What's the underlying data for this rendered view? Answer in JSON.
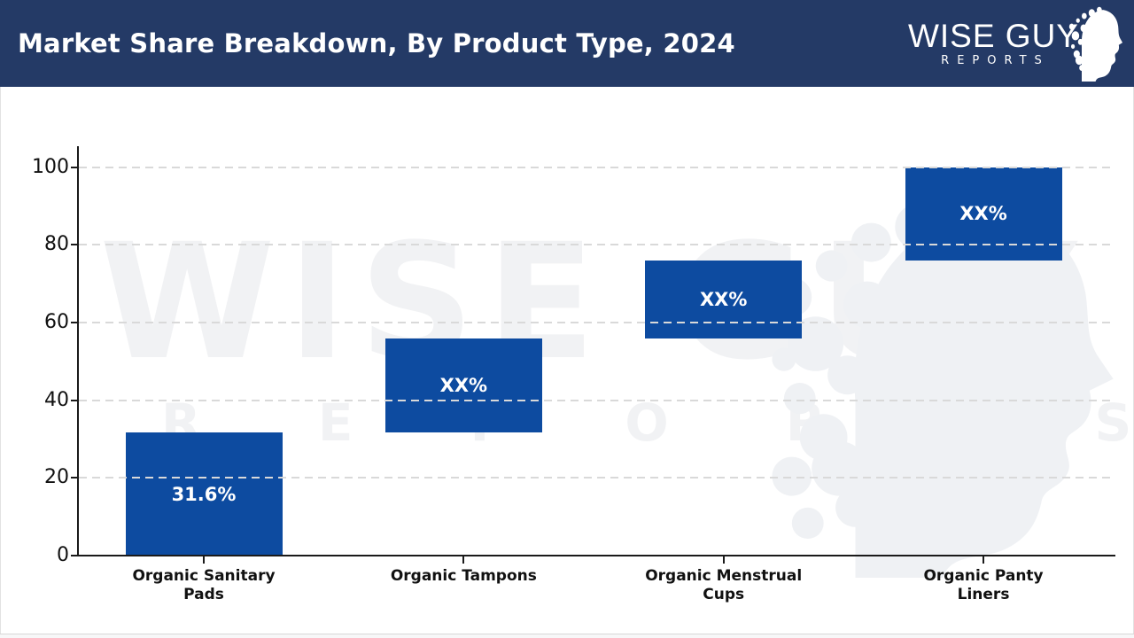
{
  "header": {
    "title": "Market Share Breakdown, By Product Type, 2024",
    "logo": {
      "line1": "WISE GUY",
      "line2": "REPORTS"
    }
  },
  "watermark": {
    "line1": "WISE GUY",
    "line2": "R E P O R T S"
  },
  "colors": {
    "header_bg": "#243A66",
    "bar": "#0D4BA0",
    "grid": "#D9D9D9",
    "axis": "#1A1A1A",
    "watermark": "#F1F2F4",
    "value_label_on_bar": "#FFFFFF"
  },
  "chart_data": {
    "type": "bar",
    "subtype": "waterfall (cumulative market-share breakdown, sums to 100%)",
    "title": "Market Share Breakdown, By Product Type, 2024",
    "categories": [
      "Organic Sanitary Pads",
      "Organic Tampons",
      "Organic Menstrual Cups",
      "Organic Panty Liners"
    ],
    "segments": [
      {
        "category_lines": [
          "Organic Sanitary",
          "Pads"
        ],
        "start": 0,
        "end": 31.6,
        "value_label": "31.6%"
      },
      {
        "category_lines": [
          "Organic Tampons"
        ],
        "start": 31.6,
        "end": 55.8,
        "value_label": "XX%"
      },
      {
        "category_lines": [
          "Organic Menstrual",
          "Cups"
        ],
        "start": 55.8,
        "end": 75.9,
        "value_label": "XX%"
      },
      {
        "category_lines": [
          "Organic Panty",
          "Liners"
        ],
        "start": 75.9,
        "end": 100,
        "value_label": "XX%"
      }
    ],
    "yticks": [
      0,
      20,
      40,
      60,
      80,
      100
    ],
    "ylim": [
      0,
      105
    ],
    "xlabel": "",
    "ylabel": "",
    "grid": "horizontal dashed gridlines drawn over bars",
    "legend": "none"
  }
}
